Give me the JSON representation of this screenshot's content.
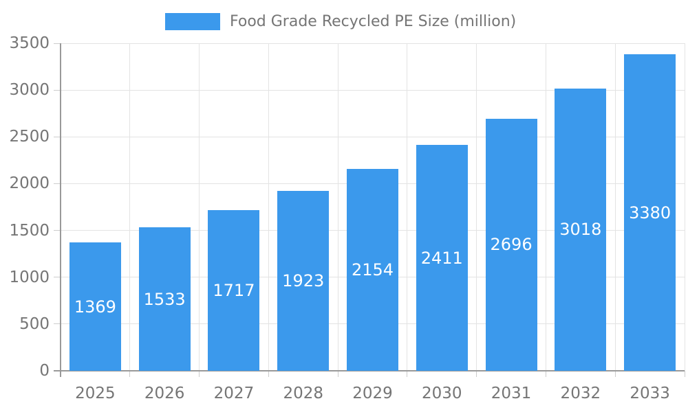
{
  "legend": {
    "label": "Food Grade Recycled PE Size (million)"
  },
  "chart_data": {
    "type": "bar",
    "title": "Food Grade Recycled PE Size (million)",
    "categories": [
      "2025",
      "2026",
      "2027",
      "2028",
      "2029",
      "2030",
      "2031",
      "2032",
      "2033"
    ],
    "values": [
      1369,
      1533,
      1717,
      1923,
      2154,
      2411,
      2696,
      3018,
      3380
    ],
    "xlabel": "",
    "ylabel": "",
    "ylim": [
      0,
      3500
    ],
    "ytick_step": 500,
    "ytick_labels": [
      "0",
      "500",
      "1000",
      "1500",
      "2000",
      "2500",
      "3000",
      "3500"
    ],
    "grid": true,
    "legend_position": "top",
    "value_labels_shown": true,
    "colors": {
      "bar": "#3B99EC",
      "value_label_text": "#ffffff",
      "axis_text": "#757575",
      "axis_line": "#999999",
      "tick_line": "#cccccc",
      "gridline": "#e3e3e3",
      "background": "#ffffff"
    }
  }
}
